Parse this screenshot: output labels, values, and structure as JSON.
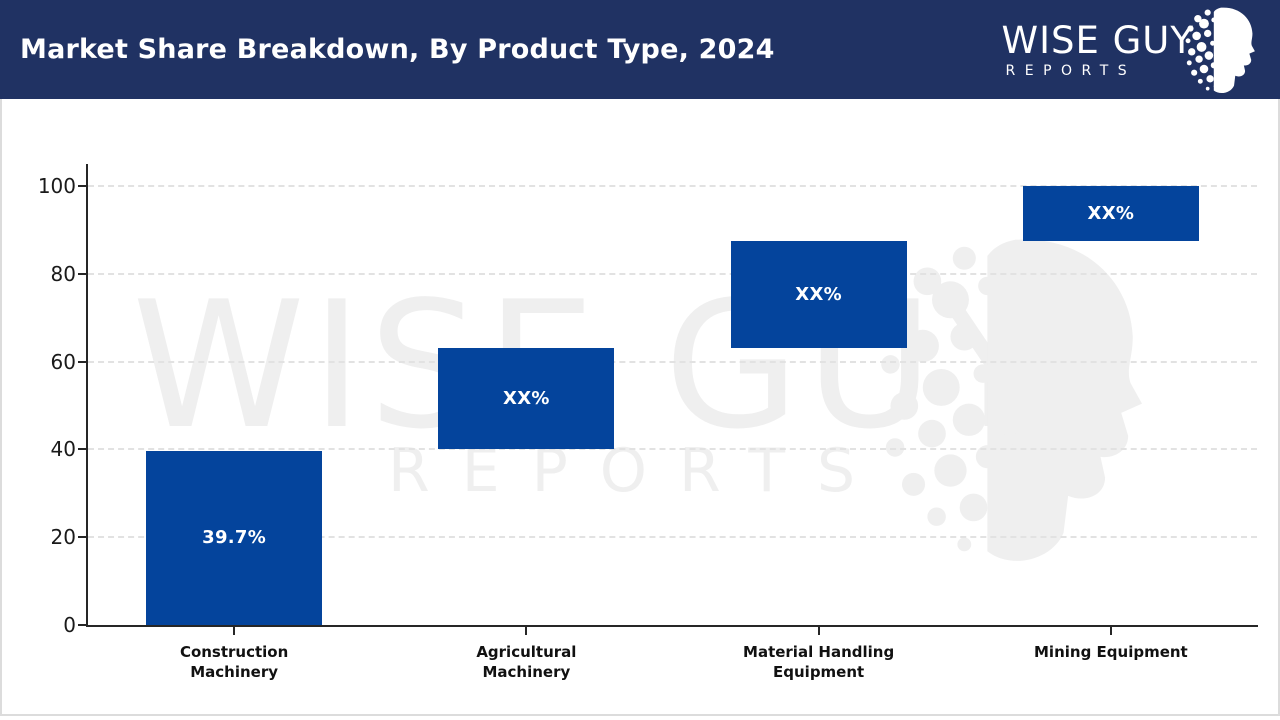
{
  "header": {
    "title": "Market Share Breakdown, By Product Type, 2024",
    "bg_color": "#203263",
    "logo": {
      "wordmark": "WISE GUY",
      "subtitle": "REPORTS"
    }
  },
  "watermark": {
    "line1": "WISE GUY",
    "line2": "REPORTS"
  },
  "chart_data": {
    "type": "bar",
    "subtype": "waterfall",
    "title": "Market Share Breakdown, By Product Type, 2024",
    "categories": [
      "Construction\nMachinery",
      "Agricultural\nMachinery",
      "Material Handling\nEquipment",
      "Mining Equipment"
    ],
    "bars": [
      {
        "category": "Construction Machinery",
        "start": 0,
        "end": 39.7,
        "label": "39.7%"
      },
      {
        "category": "Agricultural Machinery",
        "start": 40,
        "end": 63,
        "label": "XX%"
      },
      {
        "category": "Material Handling Equipment",
        "start": 63,
        "end": 87.5,
        "label": "XX%"
      },
      {
        "category": "Mining Equipment",
        "start": 87.5,
        "end": 100,
        "label": "XX%"
      }
    ],
    "ylim": [
      0,
      100
    ],
    "yticks": [
      0,
      20,
      40,
      60,
      80,
      100
    ],
    "xlabel": "",
    "ylabel": "",
    "grid": "horizontal-dashed",
    "legend": "none",
    "bar_color": "#04449c",
    "bar_label_color": "#ffffff",
    "axis_color": "#262626",
    "gridline_color": "#e2e2e2"
  }
}
